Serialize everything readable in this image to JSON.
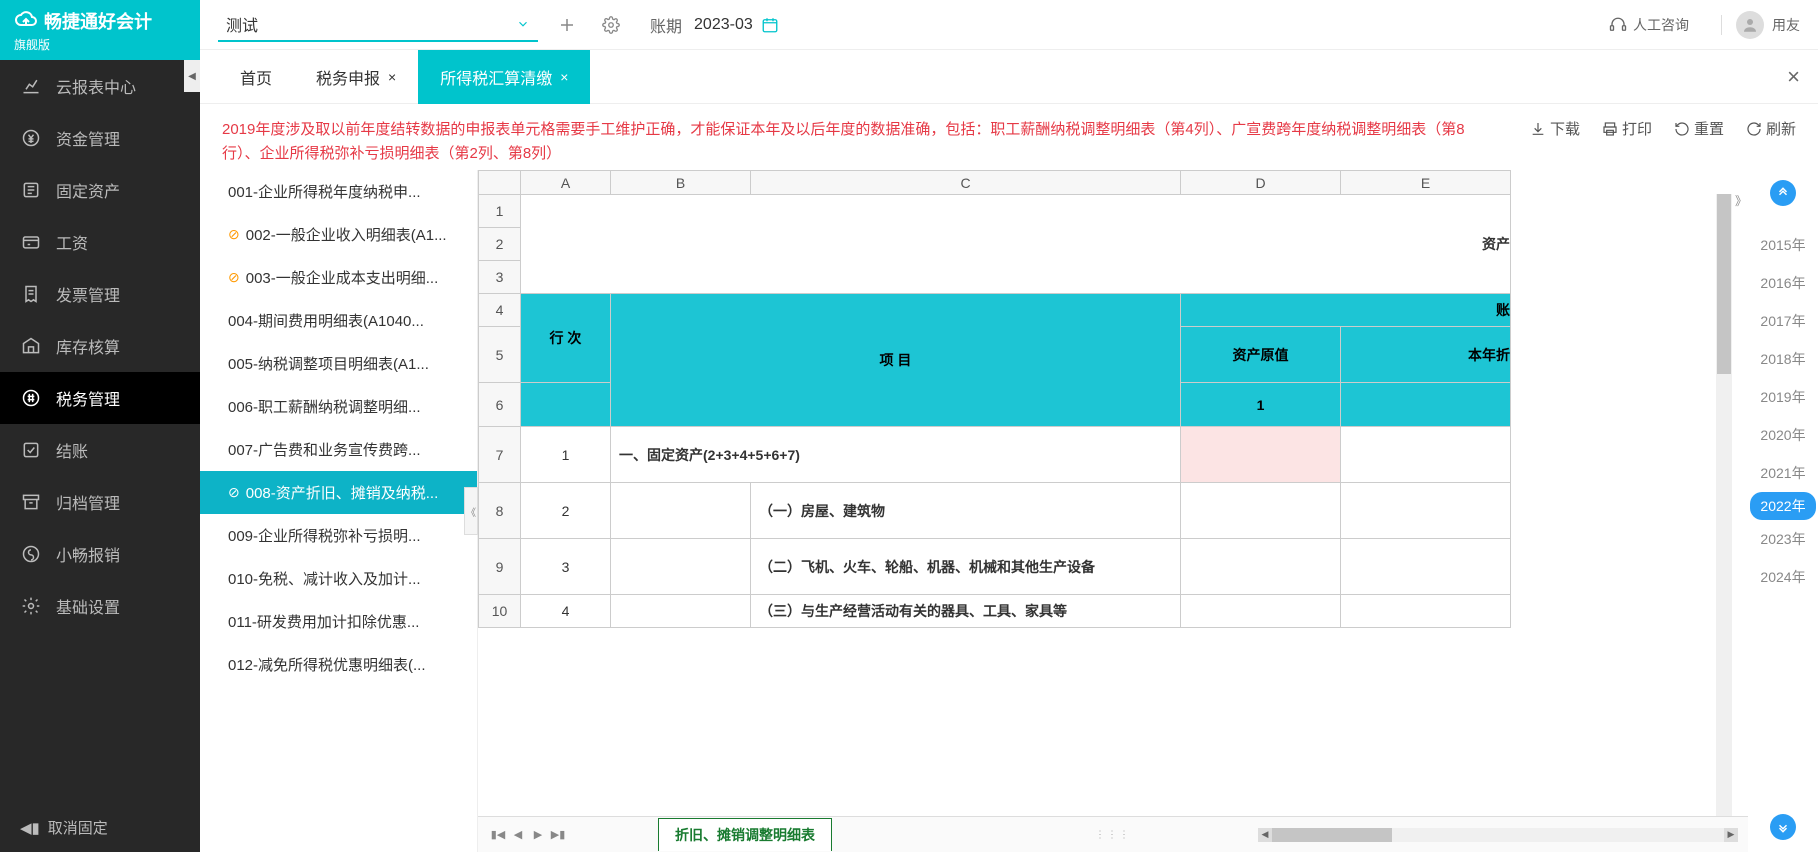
{
  "app": {
    "name": "畅捷通好会计",
    "edition": "旗舰版"
  },
  "topbar": {
    "company_selected": "测试",
    "period_label": "账期",
    "period_value": "2023-03",
    "help_label": "人工咨询",
    "user_name": "用友"
  },
  "sidebar": {
    "items": [
      {
        "label": "云报表中心",
        "icon": "chart"
      },
      {
        "label": "资金管理",
        "icon": "money"
      },
      {
        "label": "固定资产",
        "icon": "asset"
      },
      {
        "label": "工资",
        "icon": "salary"
      },
      {
        "label": "发票管理",
        "icon": "invoice"
      },
      {
        "label": "库存核算",
        "icon": "inventory"
      },
      {
        "label": "税务管理",
        "icon": "tax",
        "active": true
      },
      {
        "label": "结账",
        "icon": "close"
      },
      {
        "label": "归档管理",
        "icon": "archive"
      },
      {
        "label": "小畅报销",
        "icon": "expense"
      },
      {
        "label": "基础设置",
        "icon": "settings"
      }
    ],
    "footer_label": "取消固定"
  },
  "tabs": [
    {
      "label": "首页",
      "closable": false
    },
    {
      "label": "税务申报",
      "closable": true
    },
    {
      "label": "所得税汇算清缴",
      "closable": true,
      "active": true
    }
  ],
  "notice": {
    "text": "2019年度涉及取以前年度结转数据的申报表单元格需要手工维护正确，才能保证本年及以后年度的数据准确，包括：职工薪酬纳税调整明细表（第4列）、广宣费跨年度纳税调整明细表（第8行）、企业所得税弥补亏损明细表（第2列、第8列）",
    "actions": [
      {
        "label": "下载",
        "icon": "download"
      },
      {
        "label": "打印",
        "icon": "print"
      },
      {
        "label": "重置",
        "icon": "reset"
      },
      {
        "label": "刷新",
        "icon": "refresh"
      }
    ]
  },
  "form_list": [
    {
      "label": "001-企业所得税年度纳税申...",
      "warn": false
    },
    {
      "label": "002-一般企业收入明细表(A1...",
      "warn": true
    },
    {
      "label": "003-一般企业成本支出明细...",
      "warn": true
    },
    {
      "label": "004-期间费用明细表(A1040...",
      "warn": false
    },
    {
      "label": "005-纳税调整项目明细表(A1...",
      "warn": false
    },
    {
      "label": "006-职工薪酬纳税调整明细...",
      "warn": false
    },
    {
      "label": "007-广告费和业务宣传费跨...",
      "warn": false
    },
    {
      "label": "008-资产折旧、摊销及纳税...",
      "warn": true,
      "active": true
    },
    {
      "label": "009-企业所得税弥补亏损明...",
      "warn": false
    },
    {
      "label": "010-免税、减计收入及加计...",
      "warn": false
    },
    {
      "label": "011-研发费用加计扣除优惠...",
      "warn": false
    },
    {
      "label": "012-减免所得税优惠明细表(...",
      "warn": false
    }
  ],
  "sheet": {
    "columns": [
      "A",
      "B",
      "C",
      "D",
      "E"
    ],
    "title_partial": "资产",
    "header_row4_D": "账",
    "header_row5_A": "行 次",
    "header_row5_BC": "项  目",
    "header_row5_D": "资产原值",
    "header_row5_E": "本年折",
    "header_row6_D": "1",
    "rows": [
      {
        "n": "7",
        "line": "1",
        "text": "一、固定资产(2+3+4+5+6+7)",
        "pink_d": true
      },
      {
        "n": "8",
        "line": "2",
        "text": "（一）房屋、建筑物"
      },
      {
        "n": "9",
        "line": "3",
        "text": "（二）飞机、火车、轮船、机器、机械和其他生产设备"
      },
      {
        "n": "10",
        "line": "4",
        "text": "（三）与生产经营活动有关的器具、工具、家具等"
      }
    ],
    "tab_name": "折旧、摊销调整明细表"
  },
  "years": [
    "2015年",
    "2016年",
    "2017年",
    "2018年",
    "2019年",
    "2020年",
    "2021年",
    "2022年",
    "2023年",
    "2024年"
  ],
  "year_active": "2022年",
  "colors": {
    "brand": "#00c4cc",
    "teal_header": "#1dc5d4",
    "notice_red": "#e63946",
    "year_active": "#2a9df4",
    "pink": "#fce4e4",
    "sheet_tab_green": "#197b30"
  }
}
